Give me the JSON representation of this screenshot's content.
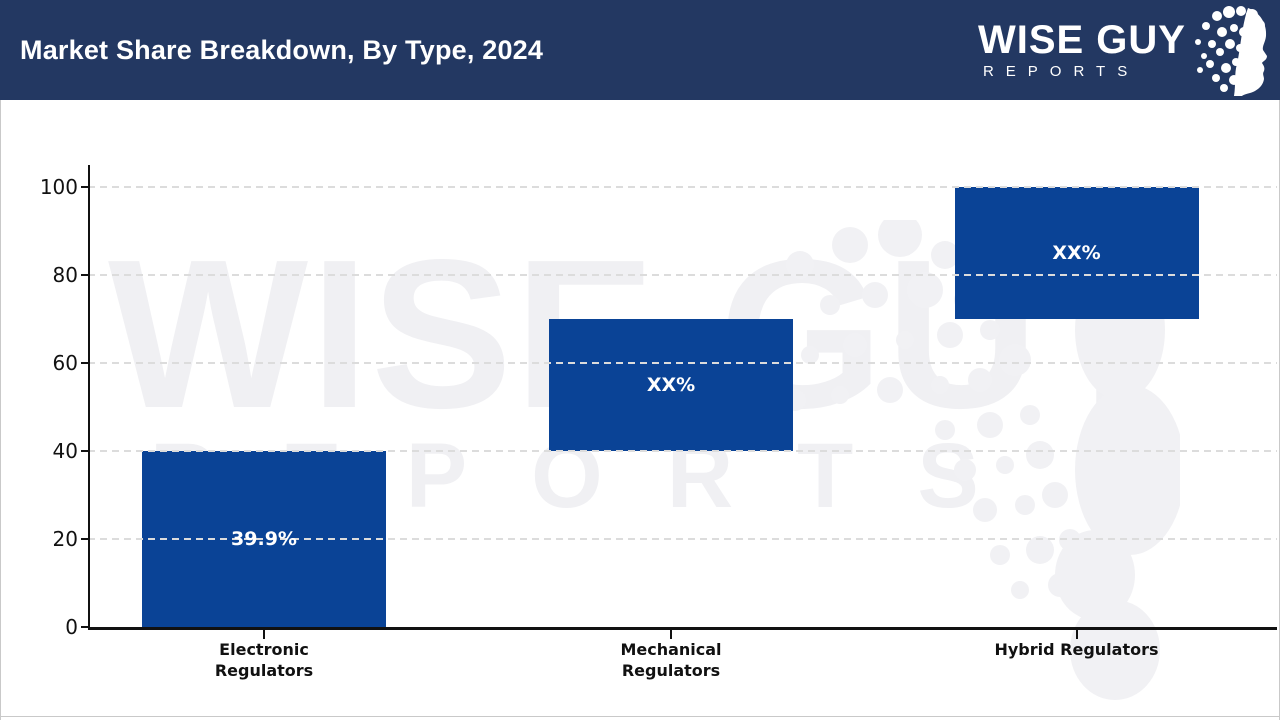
{
  "header": {
    "title": "Market Share Breakdown, By Type, 2024",
    "bg_color": "#233862",
    "logo": {
      "wordmark": "WISE GUY",
      "subtext": "REPORTS"
    }
  },
  "watermark": {
    "line1": "WISE GUY",
    "line2": "REPORTS"
  },
  "chart_data": {
    "type": "bar",
    "variant": "floating-waterfall",
    "title": "Market Share Breakdown, By Type, 2024",
    "categories": [
      "Electronic Regulators",
      "Mechanical Regulators",
      "Hybrid Regulators"
    ],
    "bars": [
      {
        "category_lines": [
          "Electronic",
          "Regulators"
        ],
        "start": 0,
        "end": 39.9,
        "label": "39.9%"
      },
      {
        "category_lines": [
          "Mechanical",
          "Regulators"
        ],
        "start": 39.9,
        "end": 70,
        "label": "XX%"
      },
      {
        "category_lines": [
          "Hybrid Regulators"
        ],
        "start": 70,
        "end": 100,
        "label": "XX%"
      }
    ],
    "bar_color": "#0a4396",
    "bar_label_color": "#ffffff",
    "ylim": [
      0,
      100
    ],
    "yticks": [
      0,
      20,
      40,
      60,
      80,
      100
    ],
    "grid": true,
    "grid_style": "dashed",
    "grid_color": "#dcdcdc",
    "xlabel": "",
    "ylabel": ""
  }
}
